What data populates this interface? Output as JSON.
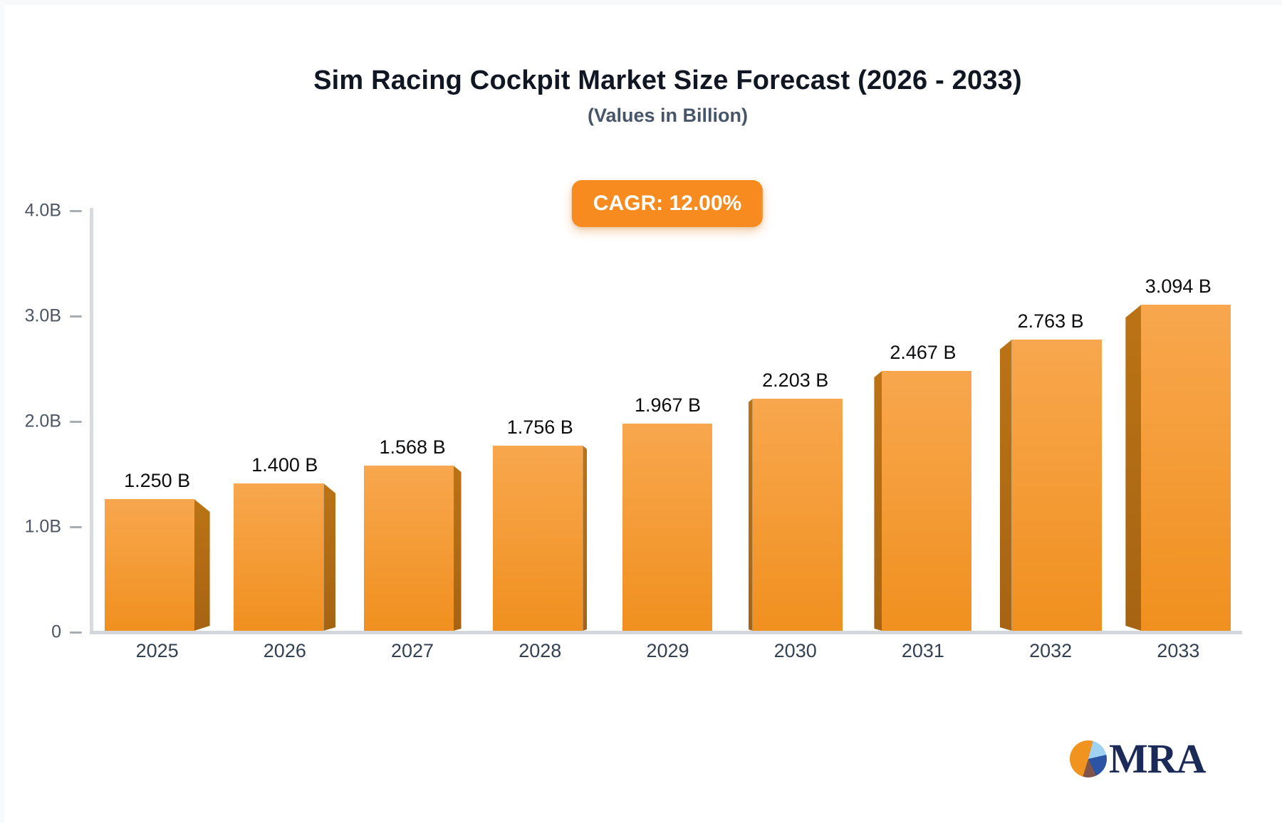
{
  "header": {
    "title": "Sim Racing Cockpit Market Size Forecast (2026 - 2033)",
    "subtitle": "(Values in Billion)",
    "cagr_badge": "CAGR: 12.00%"
  },
  "chart_data": {
    "type": "bar",
    "title": "Sim Racing Cockpit Market Size Forecast (2026 - 2033)",
    "subtitle": "(Values in Billion)",
    "annotation": "CAGR: 12.00%",
    "categories": [
      "2025",
      "2026",
      "2027",
      "2028",
      "2029",
      "2030",
      "2031",
      "2032",
      "2033"
    ],
    "values": [
      1.25,
      1.4,
      1.568,
      1.756,
      1.967,
      2.203,
      2.467,
      2.763,
      3.094
    ],
    "value_labels": [
      "1.250 B",
      "1.400 B",
      "1.568 B",
      "1.756 B",
      "1.967 B",
      "2.203 B",
      "2.467 B",
      "2.763 B",
      "3.094 B"
    ],
    "xlabel": "",
    "ylabel": "",
    "ylim": [
      0,
      4
    ],
    "yticks": [
      {
        "label": "4.0B",
        "value": 4
      },
      {
        "label": "3.0B",
        "value": 3
      },
      {
        "label": "2.0B",
        "value": 2
      },
      {
        "label": "1.0B",
        "value": 1
      },
      {
        "label": "0",
        "value": 0
      }
    ],
    "grid": false,
    "legend": false,
    "style": "3d-perspective-bars",
    "colors": {
      "bar_front_top": "#f8a74e",
      "bar_front_bottom": "#f0901f",
      "bar_side_top": "#bb7315",
      "bar_side_bottom": "#a66413",
      "badge_bg": "#f78b20",
      "badge_text": "#ffffff",
      "axis_line": "#d9dcdf",
      "tick_label": "#4b5563",
      "x_label": "#334155",
      "value_label": "#0c0d0f"
    }
  },
  "logo": {
    "text": "MRA",
    "text_color": "#1c2a58",
    "pie_slice_colors": [
      "#f0931f",
      "#9fd2f0",
      "#2b55a4",
      "#80544a"
    ]
  }
}
